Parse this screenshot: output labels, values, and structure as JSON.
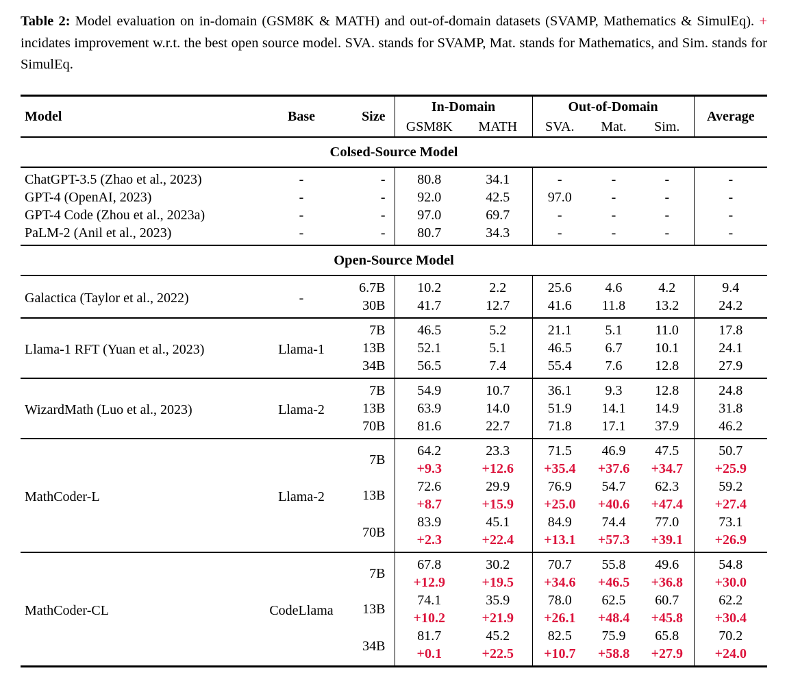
{
  "colors": {
    "delta_red": "#dc143c",
    "text": "#000000",
    "background": "#ffffff"
  },
  "caption": {
    "label": "Table 2:",
    "text_before_plus": "Model evaluation on in-domain (GSM8K & MATH) and out-of-domain datasets (SVAMP, Mathematics & SimulEq).",
    "plus_symbol": "+",
    "text_after_plus": "incidates improvement w.r.t. the best open source model. SVA. stands for SVAMP, Mat. stands for Mathematics, and Sim. stands for SimulEq."
  },
  "table": {
    "headers": {
      "model": "Model",
      "base": "Base",
      "size": "Size",
      "in_domain": "In-Domain",
      "out_of_domain": "Out-of-Domain",
      "gsm8k": "GSM8K",
      "math": "MATH",
      "sva": "SVA.",
      "mat": "Mat.",
      "sim": "Sim.",
      "average": "Average"
    },
    "sections": [
      {
        "title": "Colsed-Source Model",
        "divided": false,
        "groups": [
          {
            "model": "ChatGPT-3.5 (Zhao et al., 2023)",
            "base": "-",
            "rows": [
              {
                "size": "-",
                "values": [
                  "80.8",
                  "34.1",
                  "-",
                  "-",
                  "-",
                  "-"
                ]
              }
            ]
          },
          {
            "model": "GPT-4 (OpenAI, 2023)",
            "base": "-",
            "rows": [
              {
                "size": "-",
                "values": [
                  "92.0",
                  "42.5",
                  "97.0",
                  "-",
                  "-",
                  "-"
                ]
              }
            ]
          },
          {
            "model": "GPT-4 Code (Zhou et al., 2023a)",
            "base": "-",
            "rows": [
              {
                "size": "-",
                "values": [
                  "97.0",
                  "69.7",
                  "-",
                  "-",
                  "-",
                  "-"
                ]
              }
            ]
          },
          {
            "model": "PaLM-2 (Anil et al., 2023)",
            "base": "-",
            "rows": [
              {
                "size": "-",
                "values": [
                  "80.7",
                  "34.3",
                  "-",
                  "-",
                  "-",
                  "-"
                ]
              }
            ]
          }
        ]
      },
      {
        "title": "Open-Source Model",
        "divided": true,
        "groups": [
          {
            "model": "Galactica (Taylor et al., 2022)",
            "base": "-",
            "rows": [
              {
                "size": "6.7B",
                "values": [
                  "10.2",
                  "2.2",
                  "25.6",
                  "4.6",
                  "4.2",
                  "9.4"
                ]
              },
              {
                "size": "30B",
                "values": [
                  "41.7",
                  "12.7",
                  "41.6",
                  "11.8",
                  "13.2",
                  "24.2"
                ]
              }
            ]
          },
          {
            "model": "Llama-1 RFT (Yuan et al., 2023)",
            "base": "Llama-1",
            "rows": [
              {
                "size": "7B",
                "values": [
                  "46.5",
                  "5.2",
                  "21.1",
                  "5.1",
                  "11.0",
                  "17.8"
                ]
              },
              {
                "size": "13B",
                "values": [
                  "52.1",
                  "5.1",
                  "46.5",
                  "6.7",
                  "10.1",
                  "24.1"
                ]
              },
              {
                "size": "34B",
                "values": [
                  "56.5",
                  "7.4",
                  "55.4",
                  "7.6",
                  "12.8",
                  "27.9"
                ]
              }
            ]
          },
          {
            "model": "WizardMath (Luo et al., 2023)",
            "base": "Llama-2",
            "rows": [
              {
                "size": "7B",
                "values": [
                  "54.9",
                  "10.7",
                  "36.1",
                  "9.3",
                  "12.8",
                  "24.8"
                ]
              },
              {
                "size": "13B",
                "values": [
                  "63.9",
                  "14.0",
                  "51.9",
                  "14.1",
                  "14.9",
                  "31.8"
                ]
              },
              {
                "size": "70B",
                "values": [
                  "81.6",
                  "22.7",
                  "71.8",
                  "17.1",
                  "37.9",
                  "46.2"
                ]
              }
            ]
          },
          {
            "model": "MathCoder-L",
            "base": "Llama-2",
            "rows": [
              {
                "size": "7B",
                "values": [
                  "64.2",
                  "23.3",
                  "71.5",
                  "46.9",
                  "47.5",
                  "50.7"
                ],
                "delta": [
                  "+9.3",
                  "+12.6",
                  "+35.4",
                  "+37.6",
                  "+34.7",
                  "+25.9"
                ]
              },
              {
                "size": "13B",
                "values": [
                  "72.6",
                  "29.9",
                  "76.9",
                  "54.7",
                  "62.3",
                  "59.2"
                ],
                "delta": [
                  "+8.7",
                  "+15.9",
                  "+25.0",
                  "+40.6",
                  "+47.4",
                  "+27.4"
                ]
              },
              {
                "size": "70B",
                "values": [
                  "83.9",
                  "45.1",
                  "84.9",
                  "74.4",
                  "77.0",
                  "73.1"
                ],
                "delta": [
                  "+2.3",
                  "+22.4",
                  "+13.1",
                  "+57.3",
                  "+39.1",
                  "+26.9"
                ]
              }
            ]
          },
          {
            "model": "MathCoder-CL",
            "base": "CodeLlama",
            "rows": [
              {
                "size": "7B",
                "values": [
                  "67.8",
                  "30.2",
                  "70.7",
                  "55.8",
                  "49.6",
                  "54.8"
                ],
                "delta": [
                  "+12.9",
                  "+19.5",
                  "+34.6",
                  "+46.5",
                  "+36.8",
                  "+30.0"
                ]
              },
              {
                "size": "13B",
                "values": [
                  "74.1",
                  "35.9",
                  "78.0",
                  "62.5",
                  "60.7",
                  "62.2"
                ],
                "delta": [
                  "+10.2",
                  "+21.9",
                  "+26.1",
                  "+48.4",
                  "+45.8",
                  "+30.4"
                ]
              },
              {
                "size": "34B",
                "values": [
                  "81.7",
                  "45.2",
                  "82.5",
                  "75.9",
                  "65.8",
                  "70.2"
                ],
                "delta": [
                  "+0.1",
                  "+22.5",
                  "+10.7",
                  "+58.8",
                  "+27.9",
                  "+24.0"
                ]
              }
            ]
          }
        ]
      }
    ]
  }
}
